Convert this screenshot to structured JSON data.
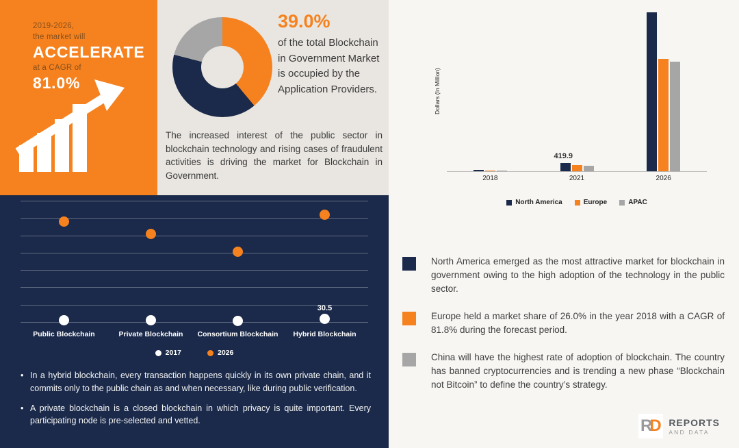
{
  "colors": {
    "orange": "#F5821F",
    "navy": "#1B2A4A",
    "gray": "#A6A6A6",
    "beige_panel": "#E9E6E1",
    "right_bg": "#F7F6F3",
    "text_dark": "#3A3A3A"
  },
  "accelerate_panel": {
    "line1": "2019-2026,",
    "line2": "the market will",
    "line3": "ACCELERATE",
    "line4": "at a CAGR of",
    "line5": "81.0%"
  },
  "donut_panel": {
    "stat": "39.0%",
    "stat_caption": "of the total Blockchain in Government Market is occupied by the Application Providers.",
    "paragraph": "The increased interest of the public sector in blockchain technology and rising cases of fraudulent activities is driving the market for Blockchain in Government."
  },
  "navy_bullets": [
    "In a hybrid blockchain, every transaction happens quickly in its own private chain, and it commits only to the public chain as and when necessary, like during public verification.",
    "A private blockchain is a closed blockchain in which privacy is quite important. Every participating node is pre-selected and vetted."
  ],
  "right_bullets": [
    {
      "color": "#1B2A4A",
      "text": "North America emerged as the most attractive market for blockchain in government owing to the high adoption of the technology in the public sector."
    },
    {
      "color": "#F5821F",
      "text": "Europe held a market share of 26.0% in the year 2018 with a CAGR of 81.8% during the forecast period."
    },
    {
      "color": "#A6A6A6",
      "text": "China will have the highest rate of adoption of blockchain. The country has banned cryptocurrencies and is trending a new phase “Blockchain not Bitcoin” to define the country’s strategy."
    }
  ],
  "logo": {
    "mark_r": "R",
    "mark_d": "D",
    "line1": "REPORTS",
    "line2": "AND DATA"
  },
  "chart_data": [
    {
      "type": "pie",
      "donut": true,
      "labels": [
        "Application Providers",
        "Other segment (navy)",
        "Other segment (gray)"
      ],
      "values": [
        39.0,
        40.0,
        21.0
      ],
      "colors": [
        "#F5821F",
        "#1B2A4A",
        "#A6A6A6"
      ]
    },
    {
      "type": "bar",
      "ylabel": "Dollars (In Million)",
      "categories": [
        "2018",
        "2021",
        "2026"
      ],
      "series": [
        {
          "name": "North America",
          "color": "#1B2A4A",
          "values": [
            70,
            419.9,
            7900
          ]
        },
        {
          "name": "Europe",
          "color": "#F5821F",
          "values": [
            45,
            290,
            5600
          ]
        },
        {
          "name": "APAC",
          "color": "#A6A6A6",
          "values": [
            40,
            260,
            5450
          ]
        }
      ],
      "ylim": [
        0,
        8000
      ],
      "data_labels": [
        {
          "series": "North America",
          "category": "2021",
          "label": "419.9"
        }
      ],
      "legend_position": "bottom",
      "grid": false
    },
    {
      "type": "scatter",
      "categories": [
        "Public Blockchain",
        "Private Blockchain",
        "Consortium Blockchain",
        "Hybrid Blockchain"
      ],
      "series": [
        {
          "name": "2017",
          "color": "#FFFFFF",
          "values": [
            20,
            18,
            15,
            30.5
          ]
        },
        {
          "name": "2026",
          "color": "#F5821F",
          "values": [
            830,
            725,
            580,
            885
          ]
        }
      ],
      "ylim": [
        0,
        1000
      ],
      "grid": true,
      "data_labels": [
        {
          "series": "2017",
          "category": "Hybrid Blockchain",
          "label": "30.5"
        }
      ],
      "legend_position": "bottom"
    }
  ]
}
